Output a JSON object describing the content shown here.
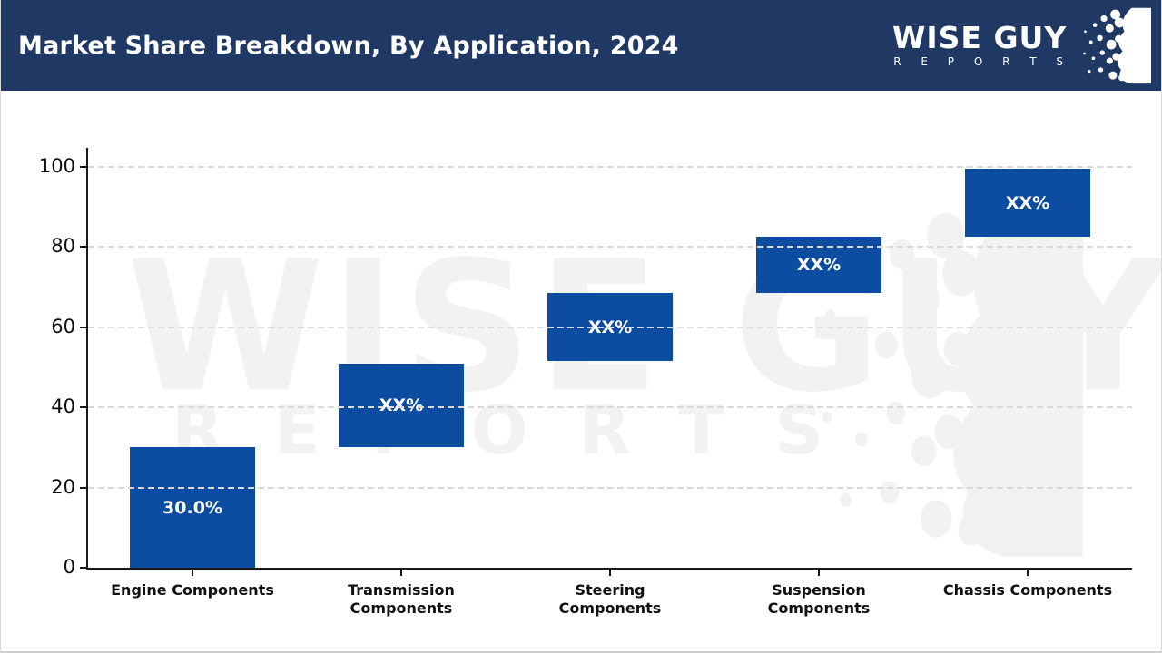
{
  "header": {
    "title": "Market Share Breakdown, By Application, 2024",
    "logo": {
      "name": "WISE GUY",
      "tagline": "R E P O R T S"
    }
  },
  "watermark": {
    "line1": "WISE GUY",
    "line2": "REPORTS"
  },
  "chart_data": {
    "type": "bar",
    "subtype": "floating-waterfall",
    "title": "Market Share Breakdown, By Application, 2024",
    "categories": [
      "Engine Components",
      "Transmission Components",
      "Steering Components",
      "Suspension Components",
      "Chassis Components"
    ],
    "category_label_lines": [
      [
        "Engine Components"
      ],
      [
        "Transmission",
        "Components"
      ],
      [
        "Steering",
        "Components"
      ],
      [
        "Suspension",
        "Components"
      ],
      [
        "Chassis Components"
      ]
    ],
    "bars": [
      {
        "category": "Engine Components",
        "start": 0,
        "end": 30,
        "label": "30.0%"
      },
      {
        "category": "Transmission Components",
        "start": 30,
        "end": 51,
        "label": "XX%"
      },
      {
        "category": "Steering Components",
        "start": 51.5,
        "end": 68.5,
        "label": "XX%"
      },
      {
        "category": "Suspension Components",
        "start": 68.5,
        "end": 82.5,
        "label": "XX%"
      },
      {
        "category": "Chassis Components",
        "start": 82.5,
        "end": 99.5,
        "label": "XX%"
      }
    ],
    "xlabel": "",
    "ylabel": "",
    "ylim": [
      0,
      105
    ],
    "yticks": [
      0,
      20,
      40,
      60,
      80,
      100
    ],
    "grid": "horizontal-dashed",
    "legend": "none",
    "colors": {
      "bar": "#0C4DA2",
      "header_bg": "#1F3864",
      "grid": "#D9D9D9",
      "axis": "#1A1A1A",
      "bar_label": "#FFFFFF",
      "watermark": "#F2F2F2"
    }
  }
}
